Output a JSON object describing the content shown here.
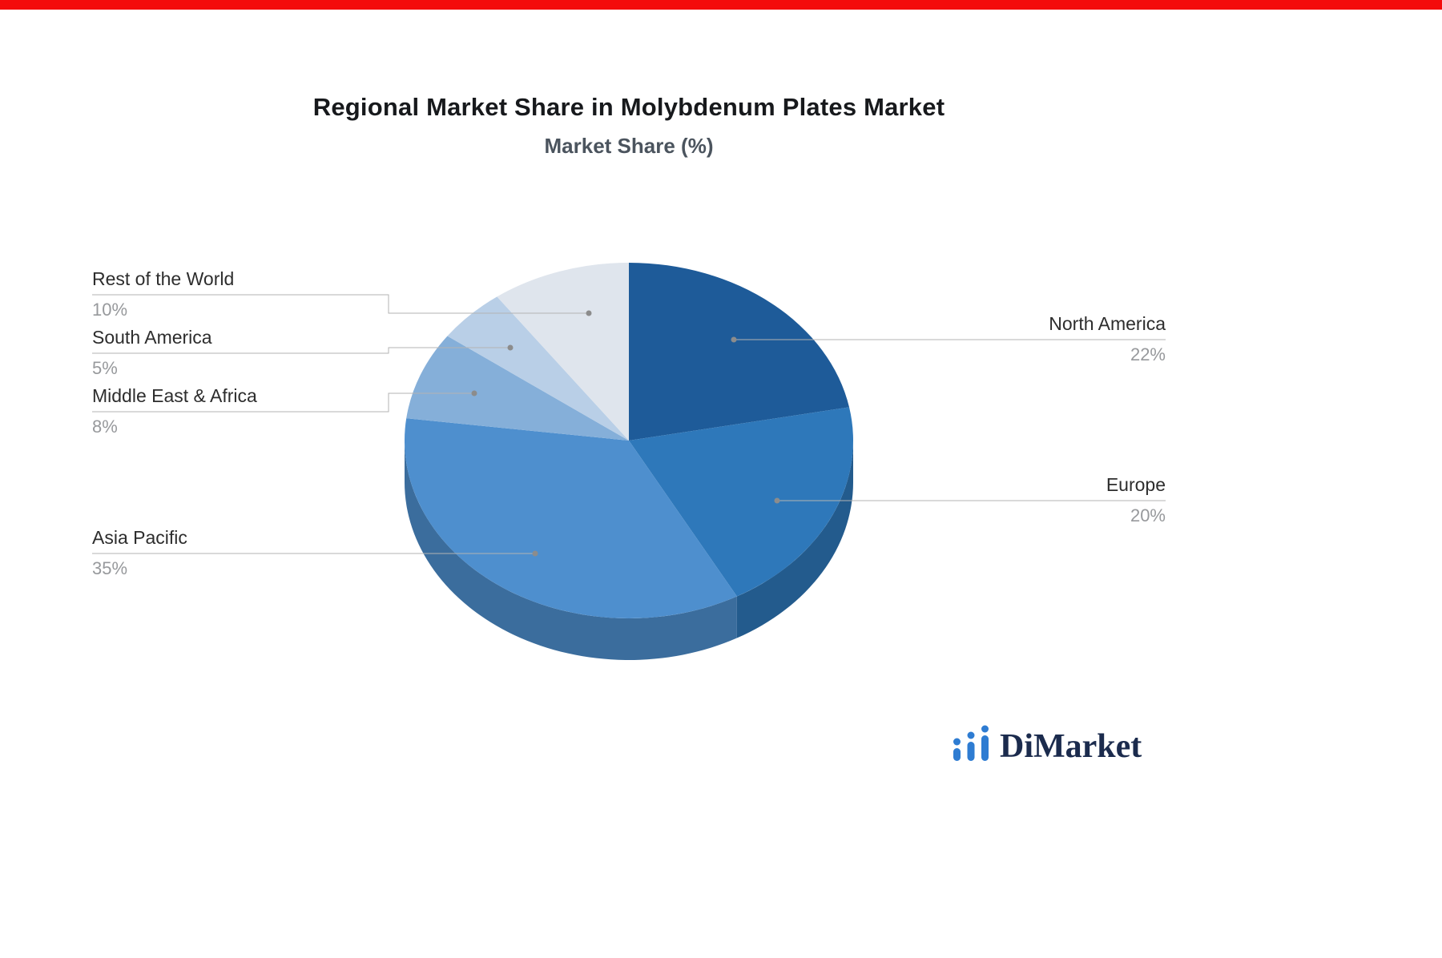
{
  "page": {
    "title": "Regional Market Share in Molybdenum Plates Market",
    "subtitle": "Market Share (%)"
  },
  "top_bar": {
    "color": "#f40b0b"
  },
  "brand": {
    "name": "DiMarket",
    "icon": "bar-chart-icon",
    "icon_color": "#2e7cd2",
    "text_color": "#1b2b4d"
  },
  "chart_data": {
    "type": "pie",
    "title": "Regional Market Share in Molybdenum Plates Market",
    "subtitle": "Market Share (%)",
    "unit": "%",
    "labels": [
      "North America",
      "Europe",
      "Asia Pacific",
      "Middle East & Africa",
      "South America",
      "Rest of the World"
    ],
    "values": [
      22,
      20,
      35,
      8,
      5,
      10
    ],
    "colors": [
      "#1e5b99",
      "#2e78ba",
      "#4e8fce",
      "#85afd9",
      "#b9cfe7",
      "#dfe5ed"
    ],
    "start_angle_deg": -90,
    "direction": "clockwise",
    "style": "3d-pie",
    "legend_position": "none",
    "callouts": "leader lines with name above and percent below"
  }
}
